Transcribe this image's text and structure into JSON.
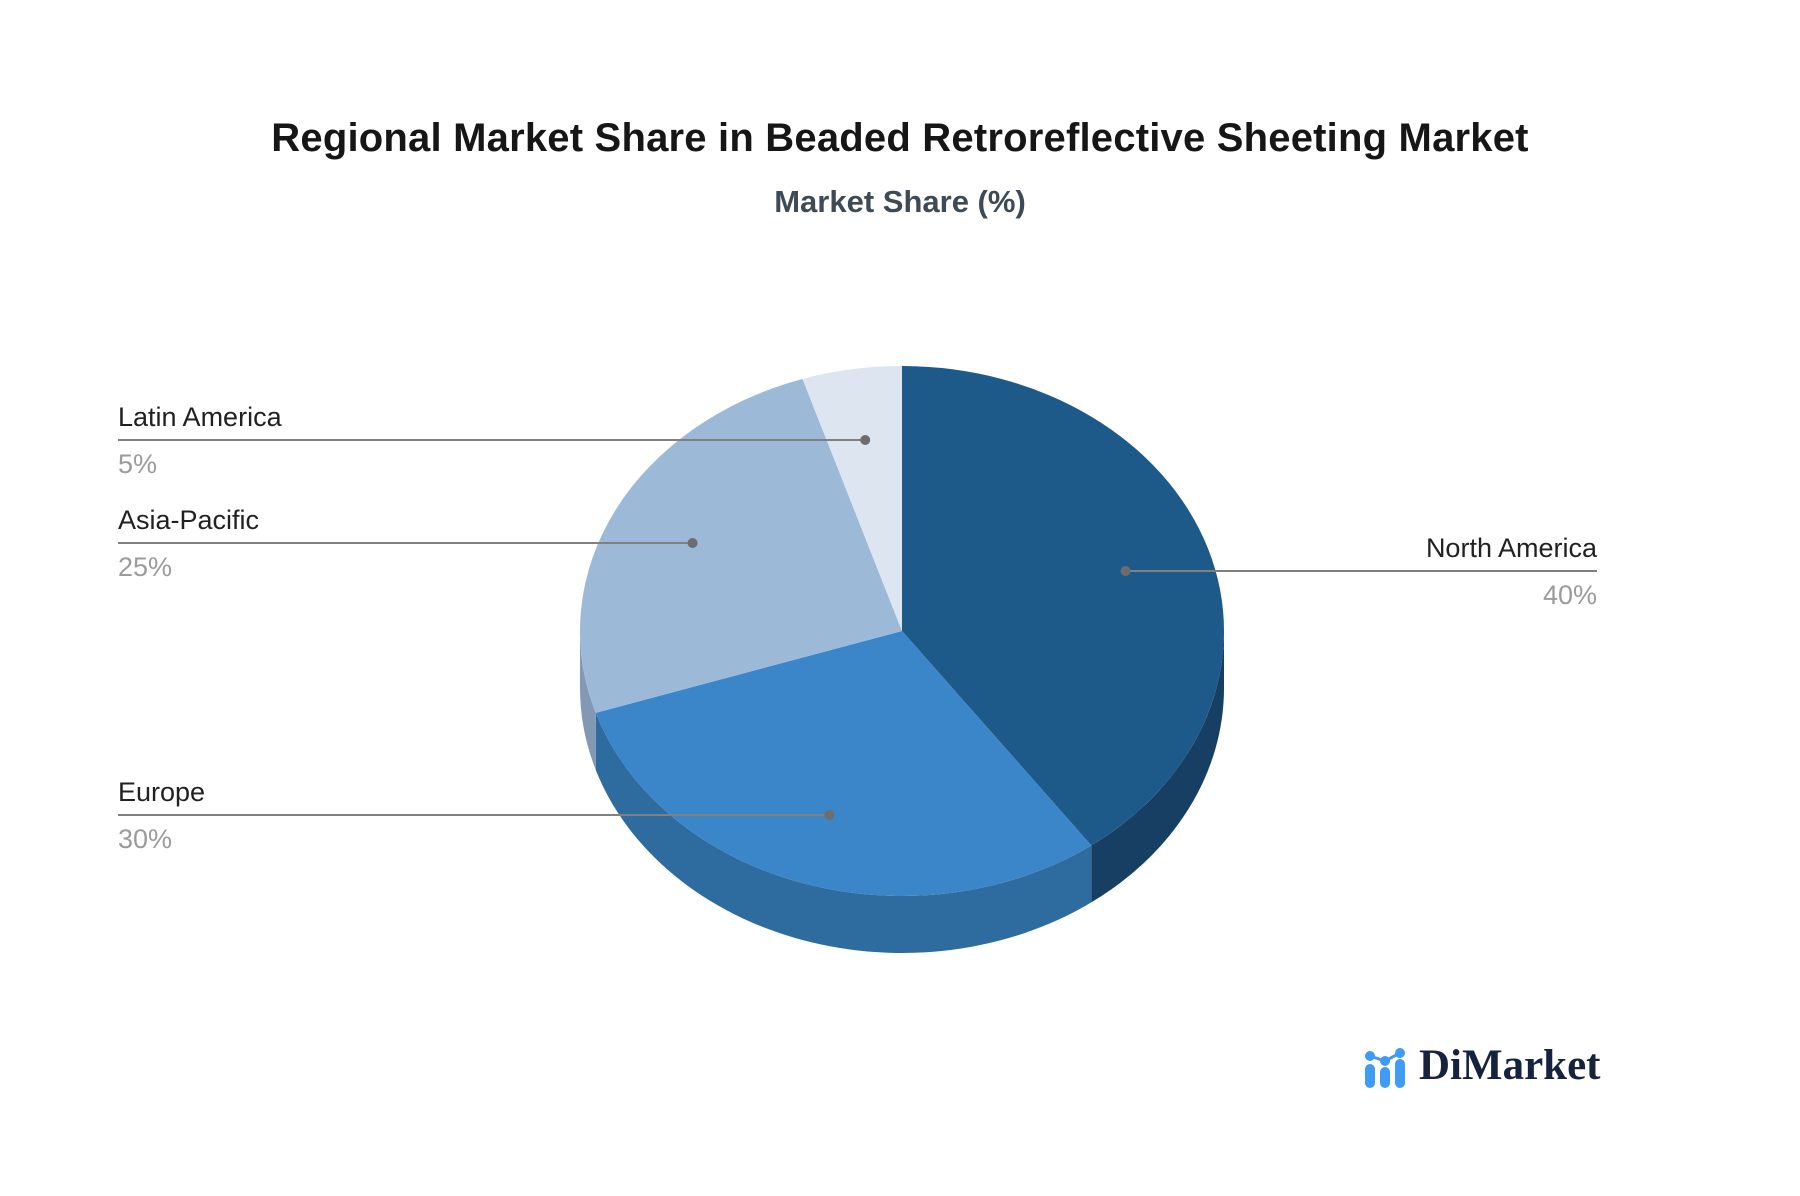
{
  "page": {
    "background": "#ffffff"
  },
  "header": {
    "title": "Regional Market Share in Beaded Retroreflective Sheeting Market",
    "subtitle": "Market Share (%)",
    "title_color": "#161616",
    "subtitle_color": "#3e4a56"
  },
  "brand": {
    "name": "DiMarket",
    "text_color": "#16233e",
    "icon": "bar-chart-logo-icon",
    "icon_color": "#3f9bf4"
  },
  "chart_data": {
    "type": "pie",
    "style": "3d",
    "title": "Regional Market Share in Beaded Retroreflective Sheeting Market",
    "subtitle": "Market Share (%)",
    "unit": "%",
    "direction": "clockwise",
    "start_angle_deg": 0,
    "legend_position": "callout-labels",
    "label_text_color": "#212121",
    "pct_text_color": "#9b9b9b",
    "leader_line_color": "#808080",
    "leader_dot_color": "#6d6d6d",
    "slices": [
      {
        "label": "North America",
        "value": 40,
        "pct_label": "40%",
        "color": "#1d5a8a",
        "rim_color": "#173e63",
        "callout_side": "right"
      },
      {
        "label": "Europe",
        "value": 30,
        "pct_label": "30%",
        "color": "#3b86c9",
        "rim_color": "#2e6b9f",
        "callout_side": "left"
      },
      {
        "label": "Asia-Pacific",
        "value": 25,
        "pct_label": "25%",
        "color": "#9cb9d7",
        "rim_color": "#8199b4",
        "callout_side": "left"
      },
      {
        "label": "Latin America",
        "value": 5,
        "pct_label": "5%",
        "color": "#dde5f0",
        "rim_color": "#b9c6da",
        "callout_side": "left"
      }
    ]
  }
}
